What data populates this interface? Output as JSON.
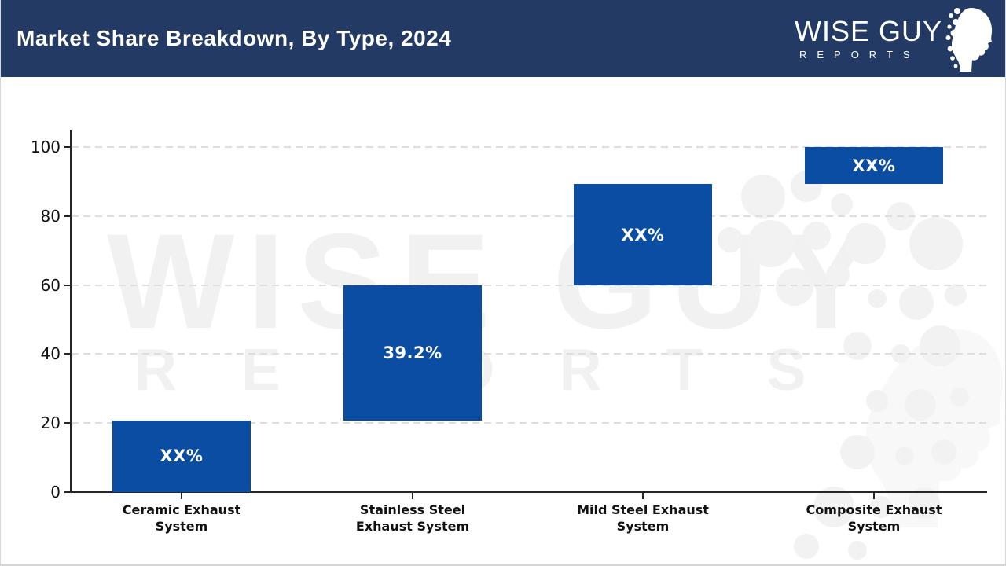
{
  "header": {
    "title": "Market Share Breakdown, By Type, 2024",
    "logo": {
      "wordmark": "WISE GUY",
      "subtext": "REPORTS"
    }
  },
  "watermark": {
    "wordmark": "WISE GUY",
    "subtext": "REPORTS"
  },
  "colors": {
    "header_navy": "#223a64",
    "bar_blue": "#0b4da2",
    "grid_gray": "#dedede",
    "axis_black": "#262626",
    "watermark_gray": "#f1f1f1"
  },
  "chart_data": {
    "type": "bar",
    "subtype": "waterfall-stacked",
    "title": "Market Share Breakdown, By Type, 2024",
    "categories": [
      "Ceramic Exhaust System",
      "Stainless Steel Exhaust System",
      "Mild Steel Exhaust System",
      "Composite Exhaust System"
    ],
    "category_label_lines": [
      [
        "Ceramic Exhaust",
        "System"
      ],
      [
        "Stainless Steel",
        "Exhaust System"
      ],
      [
        "Mild Steel Exhaust",
        "System"
      ],
      [
        "Composite Exhaust",
        "System"
      ]
    ],
    "segments": [
      {
        "category": "Ceramic Exhaust System",
        "start": 0,
        "end": 20.8,
        "value_label": "XX%"
      },
      {
        "category": "Stainless Steel Exhaust System",
        "start": 20.8,
        "end": 60,
        "value_label": "39.2%"
      },
      {
        "category": "Mild Steel Exhaust System",
        "start": 60,
        "end": 89.2,
        "value_label": "XX%"
      },
      {
        "category": "Composite Exhaust System",
        "start": 89.2,
        "end": 100,
        "value_label": "XX%"
      }
    ],
    "ylim": [
      0,
      100
    ],
    "yticks": [
      0,
      20,
      40,
      60,
      80,
      100
    ],
    "xlabel": "",
    "ylabel": "",
    "grid": "horizontal-dashed",
    "legend": "none",
    "bar_color": "#0b4da2"
  }
}
